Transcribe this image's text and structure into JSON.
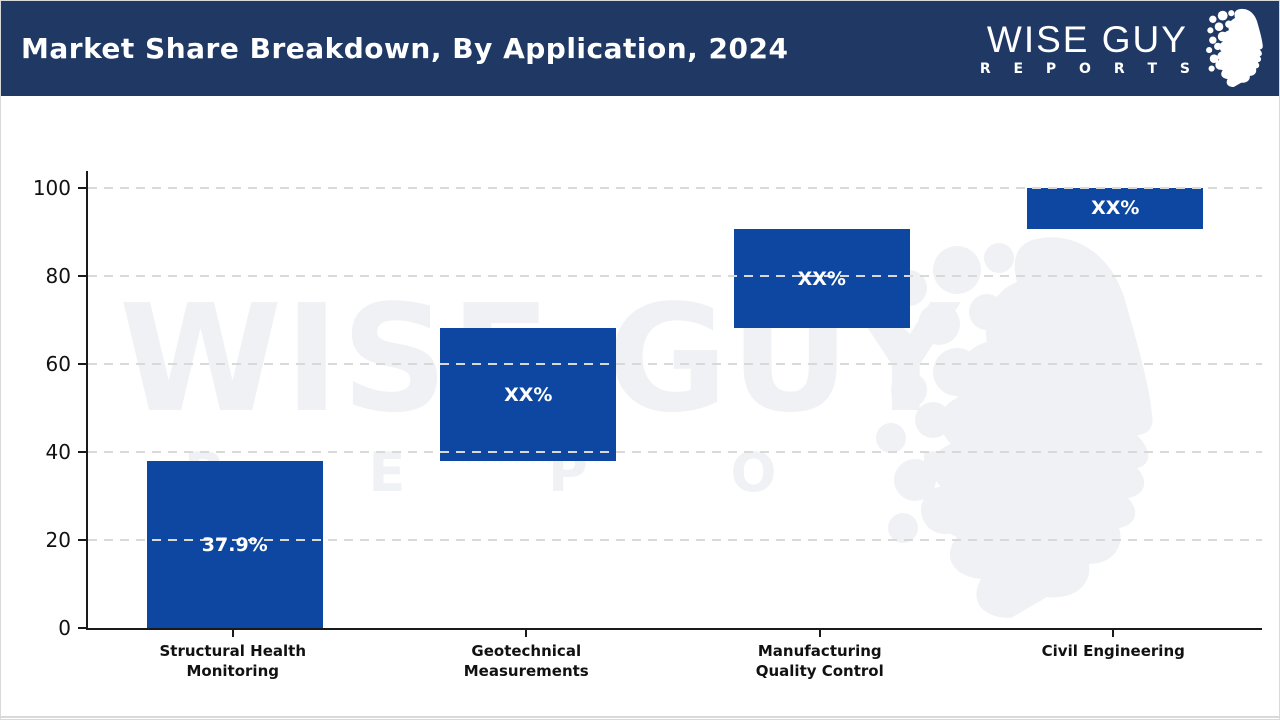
{
  "header": {
    "title": "Market Share Breakdown, By Application, 2024",
    "background": "#1F3864",
    "text_color": "#ffffff",
    "logo": {
      "line1": "WISE GUY",
      "line2": "R E P O R T S"
    }
  },
  "watermark": {
    "line1": "WISE GUY",
    "line2": "R E P O R T S",
    "color": "#f0f1f4"
  },
  "chart_data": {
    "type": "bar",
    "subtype": "waterfall",
    "title": "Market Share Breakdown, By Application, 2024",
    "xlabel": "",
    "ylabel": "",
    "categories": [
      "Structural Health\nMonitoring",
      "Geotechnical\nMeasurements",
      "Manufacturing\nQuality Control",
      "Civil Engineering"
    ],
    "segments": [
      {
        "category": "Structural Health Monitoring",
        "start": 0,
        "end": 37.9,
        "label": "37.9%"
      },
      {
        "category": "Geotechnical Measurements",
        "start": 37.9,
        "end": 68.1,
        "label": "XX%"
      },
      {
        "category": "Manufacturing Quality Control",
        "start": 68.1,
        "end": 90.7,
        "label": "XX%"
      },
      {
        "category": "Civil Engineering",
        "start": 90.7,
        "end": 100,
        "label": "XX%"
      }
    ],
    "y_ticks": [
      0,
      20,
      40,
      60,
      80,
      100
    ],
    "ylim": [
      0,
      104
    ],
    "grid": true,
    "gridline_style": "dashed",
    "gridline_color": "#d9d9d9",
    "axis_color": "#1a1a1a",
    "bar_color": "#0D47A1",
    "bar_label_color": "#ffffff",
    "background_color": "#ffffff"
  }
}
